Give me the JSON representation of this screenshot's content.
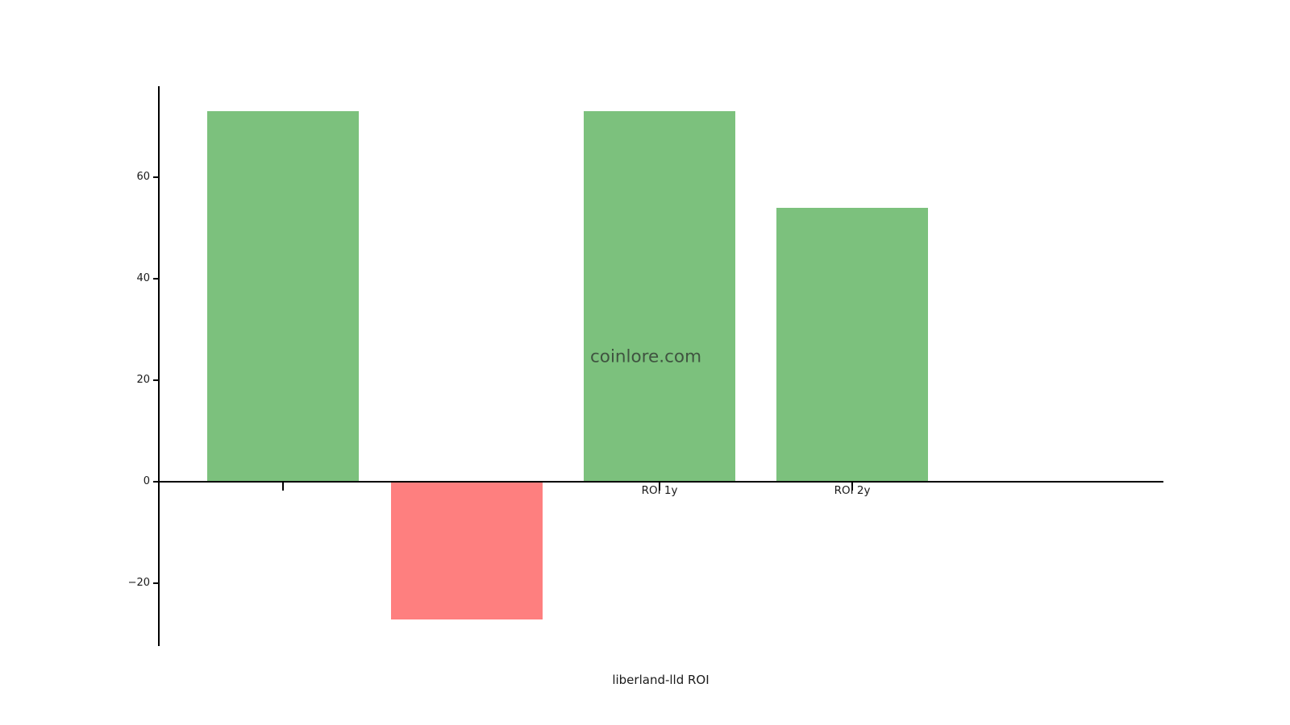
{
  "watermark": "coinlore.com",
  "chart_data": {
    "type": "bar",
    "title": "liberland-lld ROI",
    "xlabel": "liberland-lld ROI",
    "ylabel": "",
    "categories": [
      "",
      "",
      "ROI 1y",
      "ROI 2y"
    ],
    "values": [
      73,
      -27,
      73,
      54
    ],
    "bar_colors": [
      "#7cc17d",
      "#fe7f7f",
      "#7cc17d",
      "#7cc17d"
    ],
    "positive_color": "#7cc17d",
    "negative_color": "#fe7f7f",
    "yticks": [
      -20,
      0,
      20,
      40,
      60
    ],
    "ytick_labels": [
      "−20",
      "0",
      "20",
      "40",
      "60"
    ],
    "ylim": [
      -32,
      78
    ],
    "grid": false,
    "legend": null,
    "watermark": "coinlore.com",
    "axis_color": "#000000",
    "text_color": "#1a1a1a"
  }
}
